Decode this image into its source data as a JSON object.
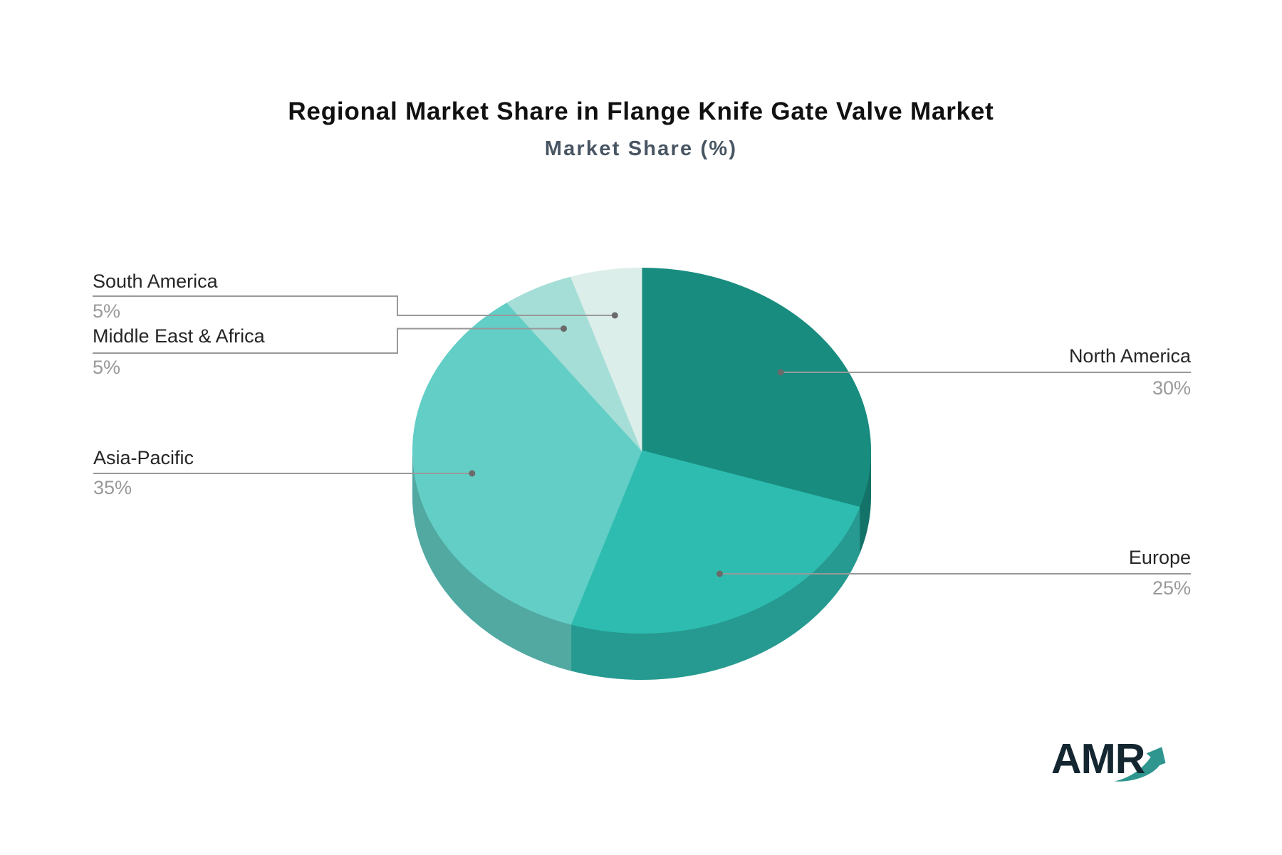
{
  "page": {
    "background": "#ffffff"
  },
  "chart_data": {
    "type": "pie",
    "style": "3d-pie",
    "title": "Regional Market Share in Flange Knife Gate Valve Market",
    "subtitle": "Market Share (%)",
    "unit": "%",
    "legend_position": "none",
    "series": [
      {
        "name": "North America",
        "value": 30,
        "label": "30%",
        "color": "#188c7f"
      },
      {
        "name": "Europe",
        "value": 25,
        "label": "25%",
        "color": "#2ebcb0"
      },
      {
        "name": "Asia-Pacific",
        "value": 35,
        "label": "35%",
        "color": "#63cec6"
      },
      {
        "name": "Middle East & Africa",
        "value": 5,
        "label": "5%",
        "color": "#a5ded7"
      },
      {
        "name": "South America",
        "value": 5,
        "label": "5%",
        "color": "#dceeea"
      }
    ],
    "label_style": {
      "name_color": "#262626",
      "value_color": "#999999",
      "connector_color": "#999999",
      "dot_color": "#6a6a6a"
    }
  },
  "logo": {
    "text": "AMR",
    "text_color": "#142731",
    "arrow_color": "#2e968f"
  }
}
